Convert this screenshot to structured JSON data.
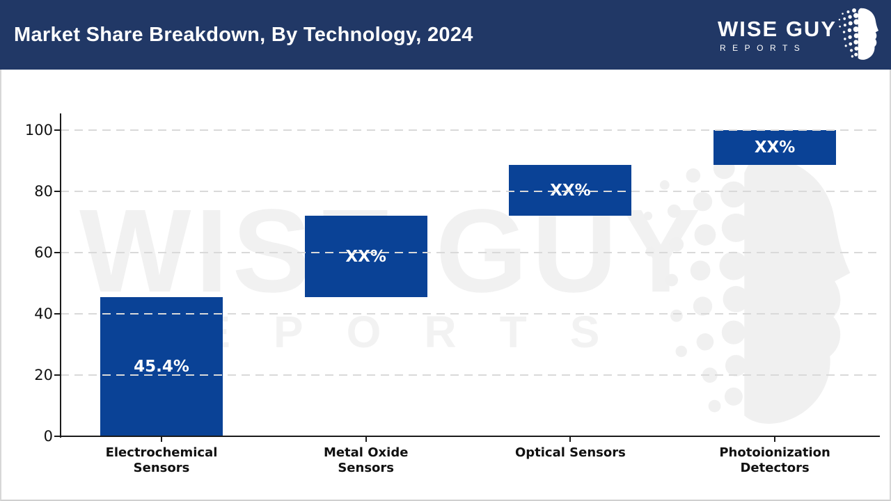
{
  "header": {
    "title": "Market Share Breakdown, By Technology, 2024",
    "logo": {
      "name": "WISE GUY",
      "sub": "REPORTS"
    }
  },
  "watermark": {
    "line1": "WISE GUY",
    "line2": "REPORTS"
  },
  "chart_data": {
    "type": "bar",
    "subtype": "waterfall",
    "title": "Market Share Breakdown, By Technology, 2024",
    "categories": [
      [
        "Electrochemical",
        "Sensors"
      ],
      [
        "Metal Oxide",
        "Sensors"
      ],
      [
        "Optical Sensors"
      ],
      [
        "Photoionization",
        "Detectors"
      ]
    ],
    "segments": [
      {
        "name": "Electrochemical Sensors",
        "start": 0,
        "end": 45.4,
        "label": "45.4%"
      },
      {
        "name": "Metal Oxide Sensors",
        "start": 45.4,
        "end": 72,
        "label": "XX%"
      },
      {
        "name": "Optical Sensors",
        "start": 72,
        "end": 88.6,
        "label": "XX%"
      },
      {
        "name": "Photoionization Detectors",
        "start": 88.6,
        "end": 100,
        "label": "XX%"
      }
    ],
    "yticks": [
      0,
      20,
      40,
      60,
      80,
      100
    ],
    "ylim": [
      0,
      105
    ],
    "xlabel": "",
    "ylabel": "",
    "legend": "none",
    "grid": "horizontal-dashed"
  },
  "colors": {
    "header_bg": "#213866",
    "bar": "#0a4296",
    "bar_label": "#ffffff",
    "grid": "#d9d9d9",
    "axis": "#1a1a1a",
    "watermark": "#f1f1f1"
  }
}
